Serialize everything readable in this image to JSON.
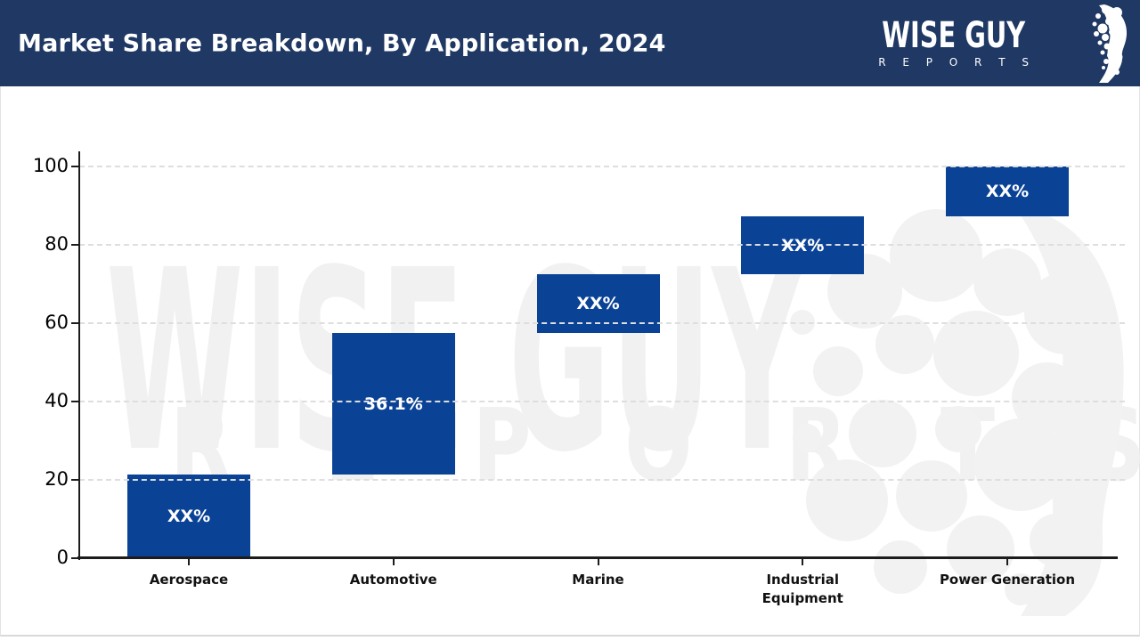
{
  "header": {
    "title": "Market Share Breakdown, By Application, 2024",
    "logo": {
      "name": "WISE GUY",
      "tagline": "R E P O R T S"
    }
  },
  "watermark": {
    "line1": "WISE GUY",
    "line2": "R E P O R T S"
  },
  "colors": {
    "header_bg": "#1f3864",
    "bar": "#0a4296",
    "bar_label": "#ffffff",
    "gridline": "#dedede",
    "axis": "#1c1c1c"
  },
  "chart_data": {
    "type": "bar",
    "subtype": "waterfall",
    "title": "Market Share Breakdown, By Application, 2024",
    "categories": [
      "Aerospace",
      "Automotive",
      "Marine",
      "Industrial\nEquipment",
      "Power Generation"
    ],
    "bars": [
      {
        "category": "Aerospace",
        "start": 0,
        "end": 21.3,
        "label": "XX%"
      },
      {
        "category": "Automotive",
        "start": 21.3,
        "end": 57.4,
        "label": "36.1%",
        "value": 36.1
      },
      {
        "category": "Marine",
        "start": 57.4,
        "end": 72.4,
        "label": "XX%"
      },
      {
        "category": "Industrial Equipment",
        "start": 72.4,
        "end": 87.3,
        "label": "XX%"
      },
      {
        "category": "Power Generation",
        "start": 87.3,
        "end": 100,
        "label": "XX%"
      }
    ],
    "ylim": [
      0,
      100
    ],
    "yticks": [
      0,
      20,
      40,
      60,
      80,
      100
    ],
    "xlabel": "",
    "ylabel": "",
    "grid": "horizontal-dashed",
    "legend": null
  }
}
